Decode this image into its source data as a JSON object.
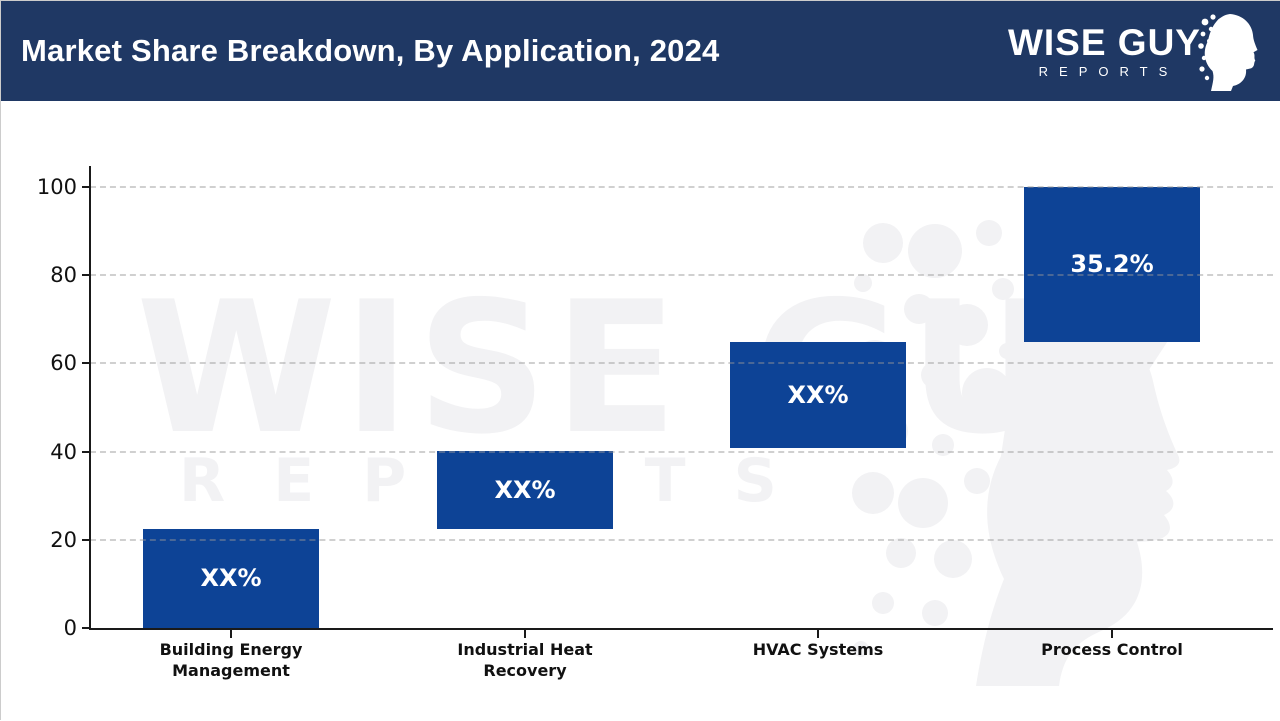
{
  "header": {
    "title": "Market Share Breakdown, By Application, 2024",
    "logo": {
      "line1": "WISE GUY",
      "line2": "REPORTS"
    }
  },
  "watermark": {
    "line1": "WISE GUY",
    "line2": "R E P O R T S"
  },
  "chart_data": {
    "type": "bar",
    "subtype": "waterfall",
    "title": "Market Share Breakdown, By Application, 2024",
    "categories": [
      "Building Energy Management",
      "Industrial Heat Recovery",
      "HVAC Systems",
      "Process Control"
    ],
    "segments": [
      {
        "category": "Building Energy Management",
        "start": 0,
        "end": 22.5,
        "data_label": "XX%"
      },
      {
        "category": "Industrial Heat Recovery",
        "start": 22.5,
        "end": 40.2,
        "data_label": "XX%"
      },
      {
        "category": "HVAC Systems",
        "start": 40.8,
        "end": 64.8,
        "data_label": "XX%"
      },
      {
        "category": "Process Control",
        "start": 64.8,
        "end": 100,
        "data_label": "35.2%"
      }
    ],
    "y_ticks": [
      0,
      20,
      40,
      60,
      80,
      100
    ],
    "ylim": [
      0,
      105
    ],
    "xlabel": "",
    "ylabel": "",
    "grid": "horizontal-dashed",
    "legend": "none",
    "bar_color": "#0d4396"
  },
  "colors": {
    "header_bg": "#1f3864",
    "bar": "#0d4396",
    "axis": "#1a1a1a",
    "gridline": "#c8c8c8",
    "watermark": "#f2f2f4",
    "title_text": "#ffffff",
    "bar_label_text": "#ffffff"
  }
}
